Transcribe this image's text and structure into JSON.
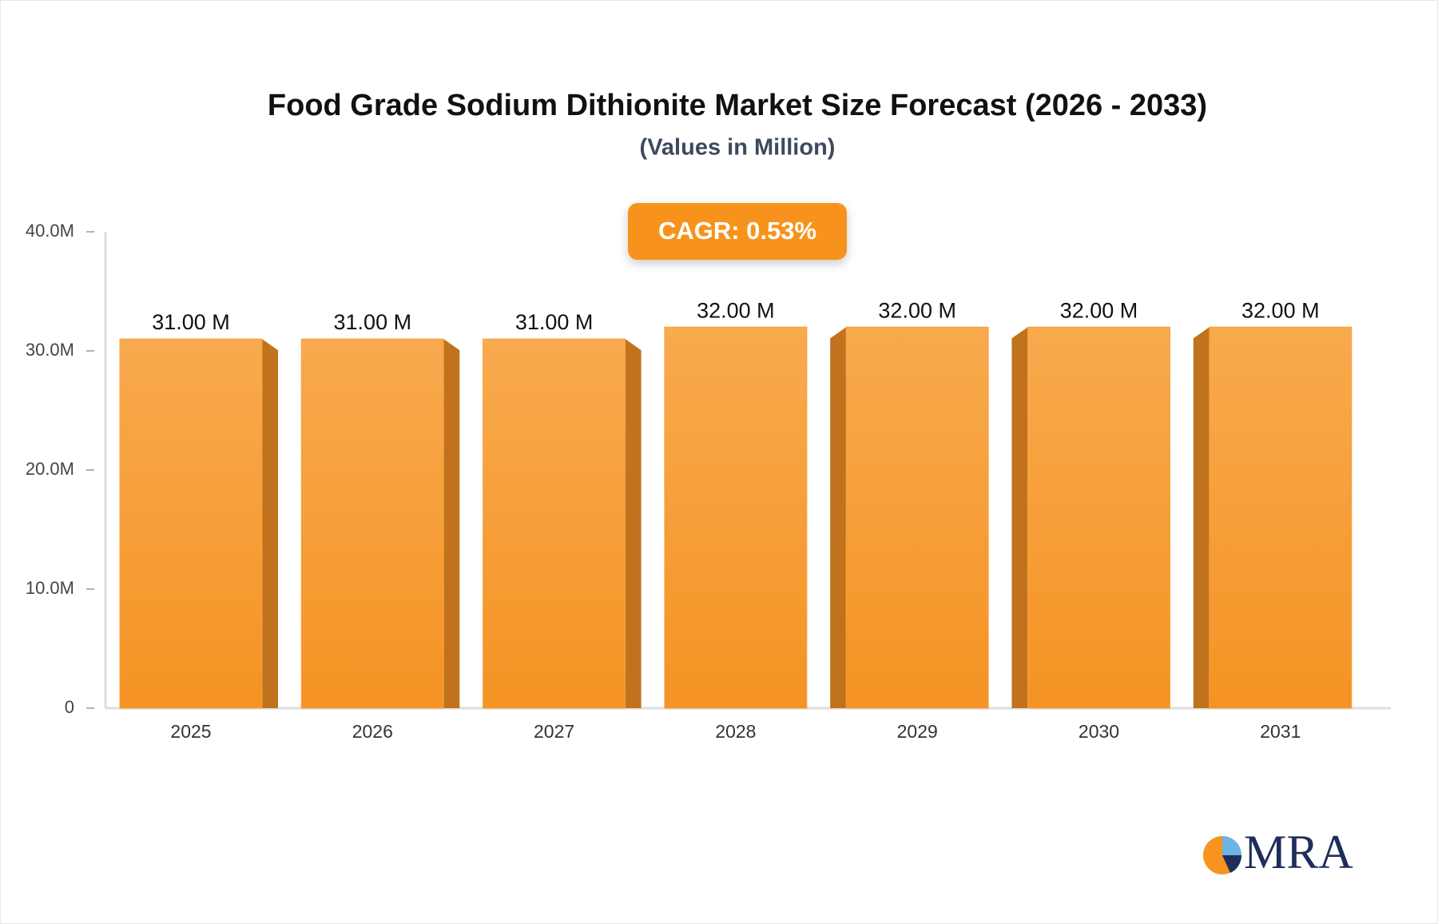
{
  "chart_data": {
    "type": "bar",
    "title": "Food Grade Sodium Dithionite Market Size Forecast (2026 - 2033)",
    "subtitle": "(Values in Million)",
    "annotation": "CAGR: 0.53%",
    "logo": "MRA",
    "categories": [
      "2025",
      "2026",
      "2027",
      "2028",
      "2029",
      "2030",
      "2031"
    ],
    "values": [
      31,
      31,
      31,
      32,
      32,
      32,
      32
    ],
    "value_labels": [
      "31.00 M",
      "31.00 M",
      "31.00 M",
      "32.00 M",
      "32.00 M",
      "32.00 M",
      "32.00 M"
    ],
    "color": "#f7a040",
    "ylim": [
      0,
      40
    ],
    "yticks": [
      0,
      {
        "value": 10,
        "label": "10.0M"
      },
      {
        "value": 20,
        "label": "20.0M"
      },
      {
        "value": 30,
        "label": "30.0M"
      },
      {
        "value": 40,
        "label": "40.0M"
      }
    ],
    "grid": false
  }
}
